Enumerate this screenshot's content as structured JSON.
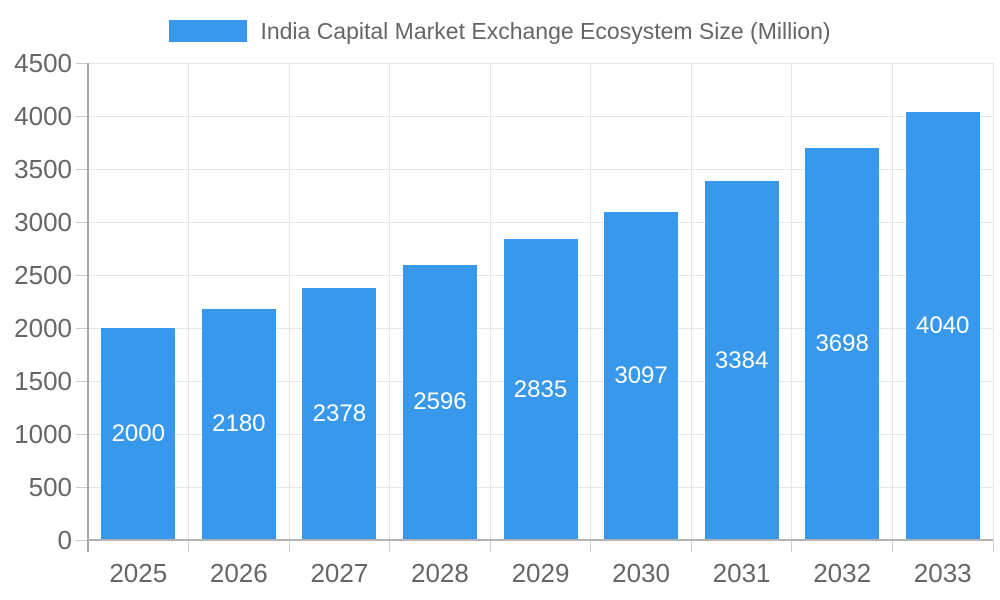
{
  "chart_data": {
    "type": "bar",
    "title": "India Capital Market Exchange Ecosystem Size (Million)",
    "legend": {
      "label": "India Capital Market Exchange Ecosystem Size (Million)",
      "position": "top-center"
    },
    "categories": [
      "2025",
      "2026",
      "2027",
      "2028",
      "2029",
      "2030",
      "2031",
      "2032",
      "2033"
    ],
    "values": [
      2000,
      2180,
      2378,
      2596,
      2835,
      3097,
      3384,
      3698,
      4040
    ],
    "value_labels": [
      "2000",
      "2180",
      "2378",
      "2596",
      "2835",
      "3097",
      "3384",
      "3698",
      "4040"
    ],
    "value_label_position": "inside-center",
    "xlabel": "",
    "ylabel": "",
    "ylim": [
      0,
      4500
    ],
    "ytick_step": 500,
    "ytick_labels": [
      "0",
      "500",
      "1000",
      "1500",
      "2000",
      "2500",
      "3000",
      "3500",
      "4000",
      "4500"
    ],
    "grid": true,
    "colors": {
      "bar": "#3898ec",
      "value_label_text": "#ffffff",
      "axis_text": "#666666",
      "gridline": "#e6e6e6",
      "axis_line": "#b3b3b3",
      "tick": "#cccccc",
      "background": "#ffffff"
    }
  }
}
